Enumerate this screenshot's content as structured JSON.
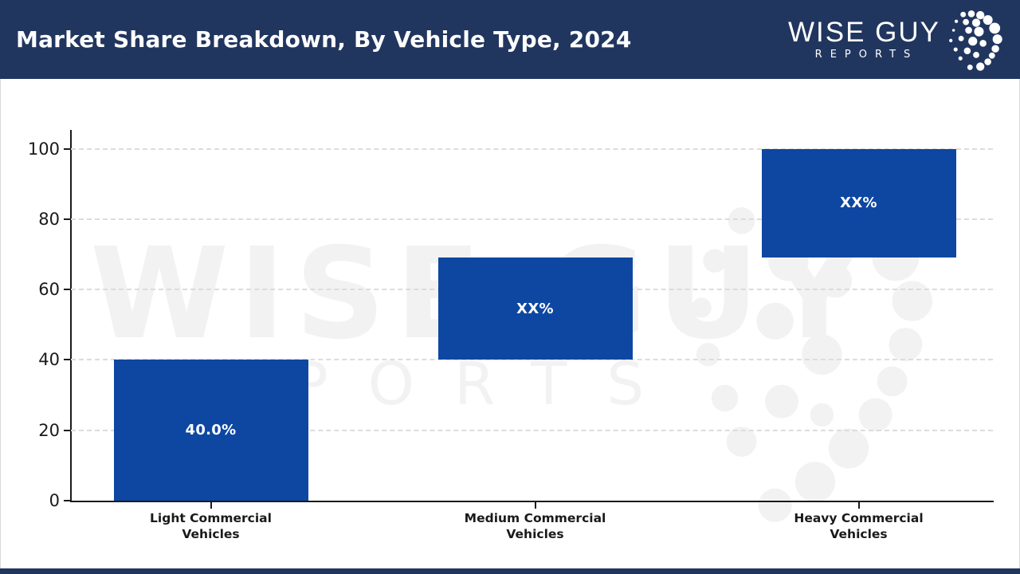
{
  "header": {
    "title": "Market Share Breakdown, By Vehicle Type, 2024",
    "logo": {
      "line1": "WISE GUY",
      "line2": "REPORTS"
    },
    "bg_color": "#21365f"
  },
  "watermark": {
    "line1": "WISE GUY",
    "line2": "REPORTS"
  },
  "chart_data": {
    "type": "bar",
    "subtype": "floating-waterfall",
    "title": "Market Share Breakdown, By Vehicle Type, 2024",
    "categories": [
      "Light Commercial Vehicles",
      "Medium Commercial Vehicles",
      "Heavy Commercial Vehicles"
    ],
    "categories_lines": [
      [
        "Light Commercial",
        "Vehicles"
      ],
      [
        "Medium Commercial",
        "Vehicles"
      ],
      [
        "Heavy Commercial",
        "Vehicles"
      ]
    ],
    "series": [
      {
        "name": "Market Share",
        "segments": [
          [
            0,
            40
          ],
          [
            40,
            69
          ],
          [
            69,
            100
          ]
        ]
      }
    ],
    "bar_labels": [
      "40.0%",
      "XX%",
      "XX%"
    ],
    "values": [
      40,
      29,
      31
    ],
    "ylim": [
      0,
      100
    ],
    "yticks": [
      0,
      20,
      40,
      60,
      80,
      100
    ],
    "xlabel": "",
    "ylabel": "",
    "grid": "dashed-horizontal",
    "legend": "none",
    "bar_color": "#0d47a1",
    "label_color": "#ffffff"
  }
}
